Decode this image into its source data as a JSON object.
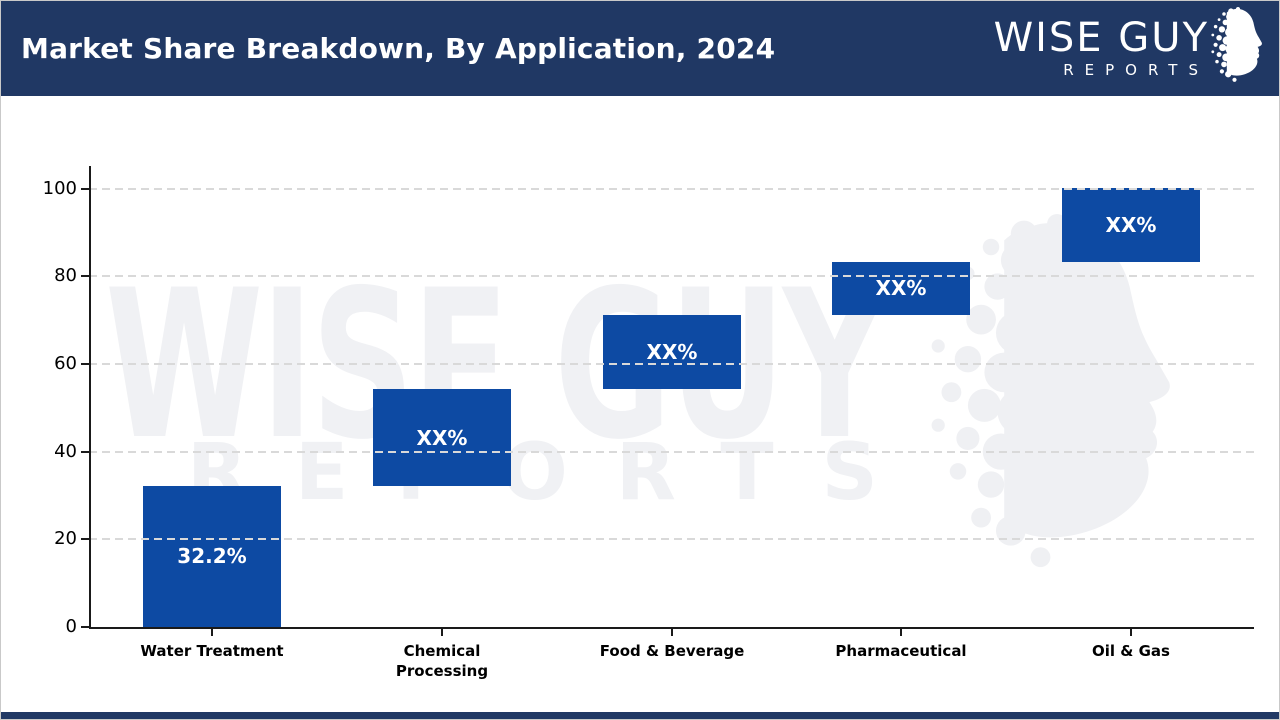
{
  "page": {
    "background": "#ffffff",
    "border_color": "#c9c9c9"
  },
  "header": {
    "title": "Market Share Breakdown, By Application, 2024",
    "background": "#203864",
    "text_color": "#ffffff",
    "logo": {
      "wordmark": "WISE GUY",
      "subtext": "REPORTS"
    }
  },
  "watermark": {
    "wordmark": "WISE GUY",
    "subtext": "REPORTS",
    "color": "#f0f1f4"
  },
  "footer": {
    "background": "#203864"
  },
  "chart_data": {
    "type": "bar",
    "subtype": "waterfall",
    "title": "Market Share Breakdown, By Application, 2024",
    "categories": [
      "Water Treatment",
      "Chemical Processing",
      "Food & Beverage",
      "Pharmaceutical",
      "Oil & Gas"
    ],
    "segments": [
      {
        "category": "Water Treatment",
        "start": 0,
        "end": 32.2,
        "label": "32.2%"
      },
      {
        "category": "Chemical Processing",
        "start": 32.2,
        "end": 54.2,
        "label": "XX%"
      },
      {
        "category": "Food & Beverage",
        "start": 54.2,
        "end": 71.2,
        "label": "XX%"
      },
      {
        "category": "Pharmaceutical",
        "start": 71.2,
        "end": 83.2,
        "label": "XX%"
      },
      {
        "category": "Oil & Gas",
        "start": 83.2,
        "end": 100.2,
        "label": "XX%"
      }
    ],
    "xlabel": "",
    "ylabel": "",
    "yticks": [
      0,
      20,
      40,
      60,
      80,
      100
    ],
    "ylim": [
      0,
      105
    ],
    "grid": "horizontal-dashed",
    "legend": "none",
    "bar_color": "#0d4aa3",
    "bar_label_color": "#ffffff",
    "axis_color": "#1a1a1a",
    "gridline_color": "#d9d9d9"
  }
}
